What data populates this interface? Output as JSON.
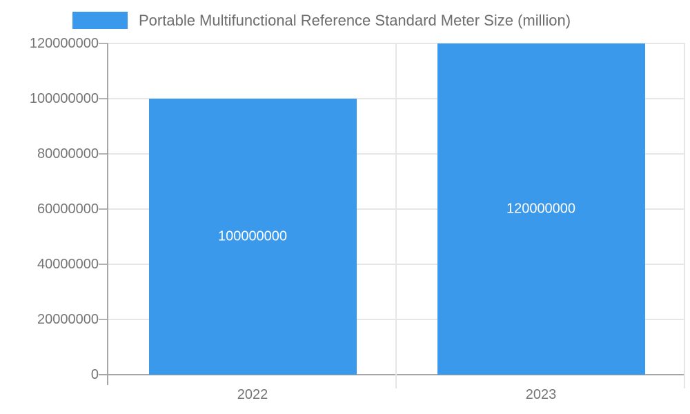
{
  "chart_data": {
    "type": "bar",
    "title": "",
    "legend_label": "Portable Multifunctional Reference Standard Meter Size (million)",
    "legend_position": "top",
    "categories": [
      "2022",
      "2023"
    ],
    "series": [
      {
        "name": "Portable Multifunctional Reference Standard Meter Size (million)",
        "values": [
          100000000,
          120000000
        ]
      }
    ],
    "bar_value_labels": [
      "100000000",
      "120000000"
    ],
    "xlabel": "",
    "ylabel": "",
    "ylim": [
      0,
      120000000
    ],
    "ytick_interval": 20000000,
    "ytick_labels": [
      "0",
      "20000000",
      "40000000",
      "60000000",
      "80000000",
      "100000000",
      "120000000"
    ],
    "grid": true,
    "gridlines": "horizontal-and-category-boundaries"
  },
  "colors": {
    "bar": "#3b99ec",
    "grid": "#e6e6e6",
    "axis": "#a6a6a6",
    "tick": "#b3b3b3",
    "tick_label_text": "#757575",
    "legend_text": "#6d6d6d",
    "bar_label_text": "#ffffff",
    "background": "#ffffff"
  }
}
